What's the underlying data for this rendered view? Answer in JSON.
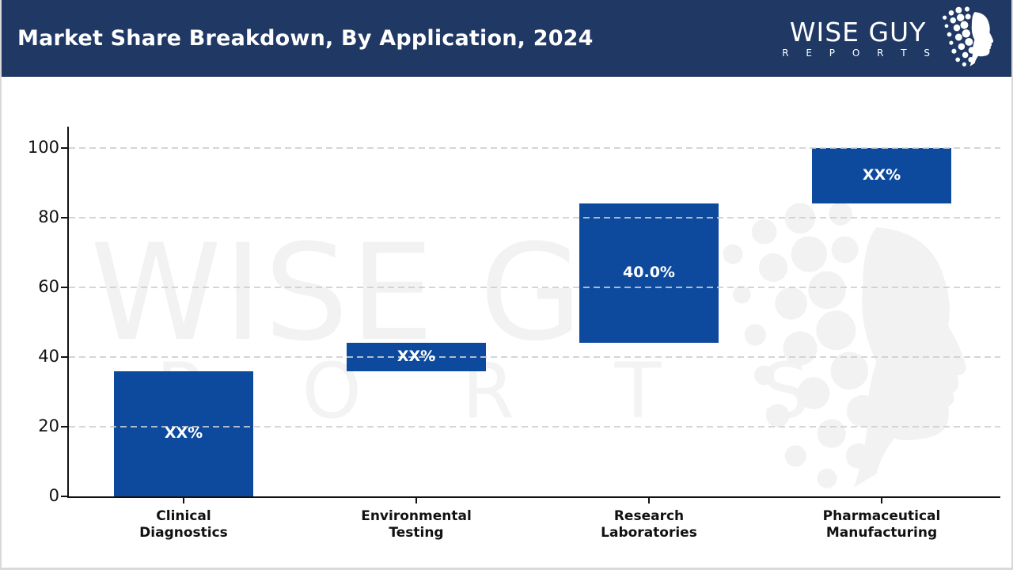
{
  "header": {
    "title": "Market Share Breakdown, By Application, 2024",
    "logo": {
      "brand": "WISE GUY",
      "sub": "R E P O R T S"
    }
  },
  "watermark": {
    "line1": "WISE GU",
    "line2": "P O R T S"
  },
  "chart_data": {
    "type": "bar",
    "subtype": "waterfall",
    "title": "Market Share Breakdown, By Application, 2024",
    "categories": [
      "Clinical\nDiagnostics",
      "Environmental\nTesting",
      "Research\nLaboratories",
      "Pharmaceutical\nManufacturing"
    ],
    "bars": [
      {
        "category": "Clinical Diagnostics",
        "start": 0,
        "end": 36,
        "value": 36,
        "label": "XX%"
      },
      {
        "category": "Environmental Testing",
        "start": 36,
        "end": 44,
        "value": 8,
        "label": "XX%"
      },
      {
        "category": "Research Laboratories",
        "start": 44,
        "end": 84,
        "value": 40,
        "label": "40.0%"
      },
      {
        "category": "Pharmaceutical Manufacturing",
        "start": 84,
        "end": 100,
        "value": 16,
        "label": "XX%"
      }
    ],
    "ylim": [
      0,
      100
    ],
    "yticks": [
      0,
      20,
      40,
      60,
      80,
      100
    ],
    "grid": "horizontal-dashed",
    "legend": "none",
    "bar_color": "#0d4a9e",
    "bar_label_color": "#ffffff"
  },
  "colors": {
    "header_bg": "#1f3864",
    "bar": "#0d4a9e",
    "grid": "#cecece",
    "axis": "#111111",
    "watermark": "#f2f2f2",
    "page_border": "#d9d9d9"
  }
}
